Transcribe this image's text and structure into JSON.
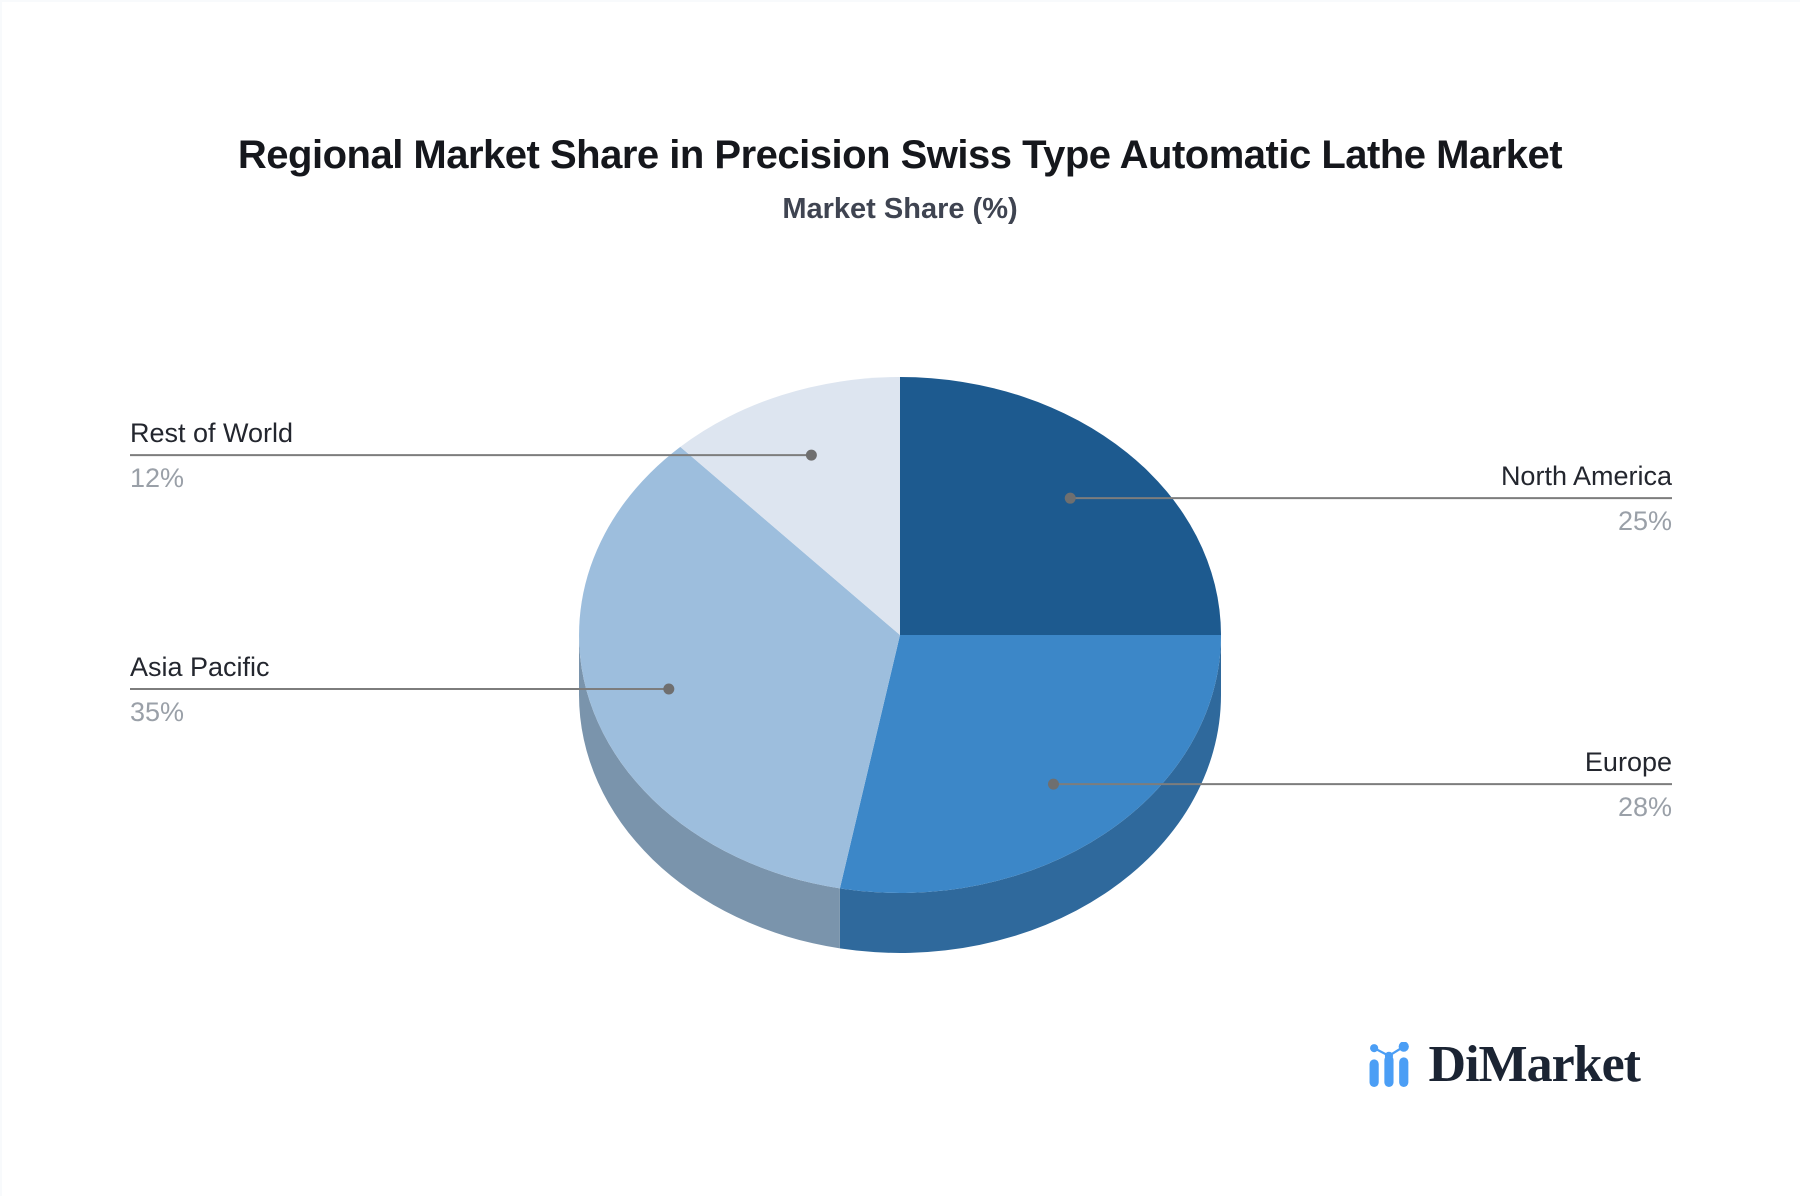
{
  "header": {
    "title": "Regional Market Share in Precision Swiss Type Automatic Lathe Market",
    "subtitle": "Market Share (%)",
    "title_color": "#15171c",
    "subtitle_color": "#3f4451"
  },
  "chart_data": {
    "type": "pie",
    "title": "Regional Market Share in Precision Swiss Type Automatic Lathe Market",
    "subtitle": "Market Share (%)",
    "unit": "%",
    "style": "3d",
    "start_angle_deg": 0,
    "direction": "clockwise",
    "legend_position": "none",
    "categories": [
      "North America",
      "Europe",
      "Asia Pacific",
      "Rest of World"
    ],
    "values": [
      25,
      28,
      35,
      12
    ],
    "segments": [
      {
        "label": "North America",
        "value": 25,
        "display": "25%",
        "color": "#1d5a8f",
        "label_side": "right"
      },
      {
        "label": "Europe",
        "value": 28,
        "display": "28%",
        "color": "#3c87c8",
        "label_side": "right"
      },
      {
        "label": "Asia Pacific",
        "value": 35,
        "display": "35%",
        "color": "#9dbedd",
        "label_side": "left"
      },
      {
        "label": "Rest of World",
        "value": 12,
        "display": "12%",
        "color": "#dde5f0",
        "label_side": "left"
      }
    ],
    "label_color": "#23262e",
    "value_color": "#9aa0a8",
    "leader_line_color": "#7d7d7d",
    "leader_dot_color": "#6f6f6f"
  },
  "branding": {
    "logo_text": "DiMarket",
    "logo_color": "#1b2433",
    "icon_color": "#4b9ef5",
    "icon": "bar-chart-trend-icon"
  }
}
